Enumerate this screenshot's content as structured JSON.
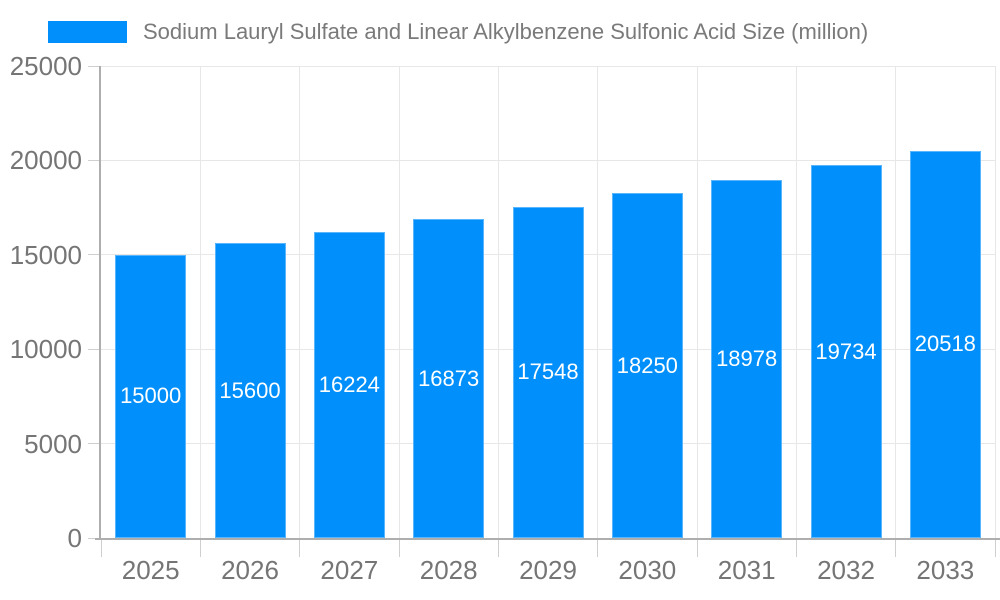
{
  "chart_data": {
    "type": "bar",
    "title": "Sodium Lauryl Sulfate and Linear Alkylbenzene Sulfonic Acid Size (million)",
    "categories": [
      "2025",
      "2026",
      "2027",
      "2028",
      "2029",
      "2030",
      "2031",
      "2032",
      "2033"
    ],
    "series": [
      {
        "name": "Sodium Lauryl Sulfate and Linear Alkylbenzene Sulfonic Acid Size (million)",
        "values": [
          15000,
          15600,
          16224,
          16873,
          17548,
          18250,
          18978,
          19734,
          20518
        ]
      }
    ],
    "value_labels": [
      "15000",
      "15600",
      "16224",
      "16873",
      "17548",
      "18250",
      "18978",
      "19734",
      "20518"
    ],
    "xlabel": "",
    "ylabel": "",
    "ylim": [
      0,
      25000
    ],
    "yticks": [
      0,
      5000,
      10000,
      15000,
      20000,
      25000
    ],
    "ytick_labels": [
      "0",
      "5000",
      "10000",
      "15000",
      "20000",
      "25000"
    ],
    "grid": true,
    "legend_position": "top-left",
    "colors": {
      "bar": "#008FFB",
      "bar_value_label": "#ffffff",
      "legend_swatch": "#008FFB",
      "legend_text": "#7a7a7a",
      "axis_label": "#757575",
      "gridline": "#e7e7e7",
      "tick": "#cfcfcf",
      "axis_line": "#aeaeae"
    }
  }
}
